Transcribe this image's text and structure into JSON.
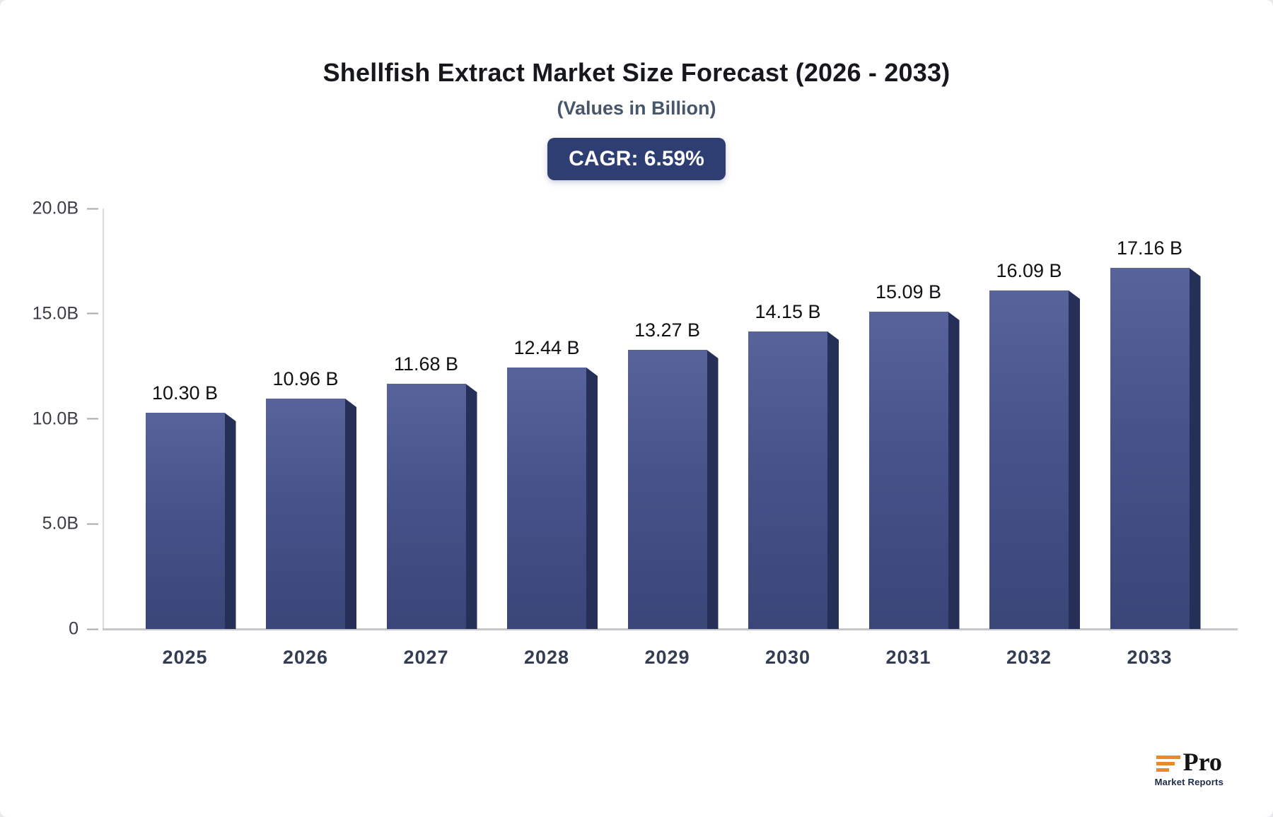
{
  "header": {
    "title": "Shellfish Extract Market Size Forecast (2026 - 2033)",
    "subtitle": "(Values in Billion)",
    "cagr_badge": "CAGR: 6.59%"
  },
  "chart_data": {
    "type": "bar",
    "title": "Shellfish Extract Market Size Forecast (2026 - 2033)",
    "subtitle": "(Values in Billion)",
    "cagr_percent": "6.59%",
    "categories": [
      "2025",
      "2026",
      "2027",
      "2028",
      "2029",
      "2030",
      "2031",
      "2032",
      "2033"
    ],
    "values": [
      10.3,
      10.96,
      11.68,
      12.44,
      13.27,
      14.15,
      15.09,
      16.09,
      17.16
    ],
    "value_labels": [
      "10.30 B",
      "10.96 B",
      "11.68 B",
      "12.44 B",
      "13.27 B",
      "14.15 B",
      "15.09 B",
      "16.09 B",
      "17.16 B"
    ],
    "xlabel": "",
    "ylabel": "",
    "ylim": [
      0,
      20
    ],
    "y_ticks": [
      {
        "label": "20.0B",
        "value": 20
      },
      {
        "label": "15.0B",
        "value": 15
      },
      {
        "label": "10.0B",
        "value": 10
      },
      {
        "label": "5.0B",
        "value": 5
      },
      {
        "label": "0",
        "value": 0
      }
    ],
    "grid": false,
    "legend_position": "none",
    "colors": {
      "bar_gradient_top": "#57639a",
      "bar_gradient_bottom": "#3a4678",
      "bar_side_face": "#262f58",
      "badge_background": "#2e3e73",
      "badge_text": "#ffffff",
      "logo_accent": "#e8892b"
    }
  },
  "footer": {
    "logo_text": "Pro",
    "logo_subtext": "Market Reports"
  }
}
